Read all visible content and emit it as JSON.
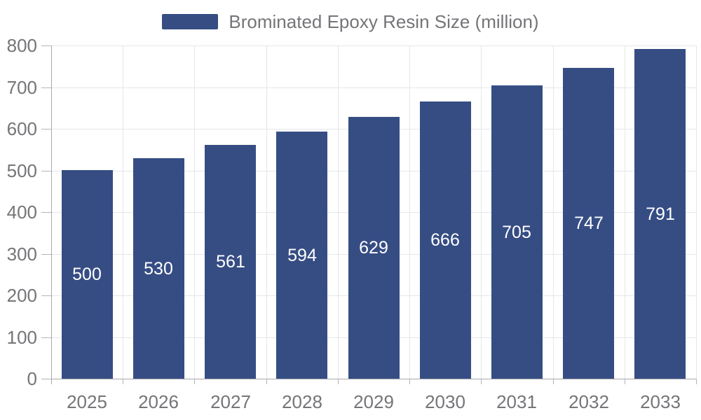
{
  "legend": {
    "label": "Brominated Epoxy Resin Size (million)"
  },
  "colors": {
    "bar": "#364d84",
    "grid_line": "#e4e6ea",
    "axis_line": "#a9a9ae",
    "tick_mark": "#b5b5ba",
    "tick_label": "#757579",
    "value_label": "#ffffff",
    "background": "#ffffff"
  },
  "chart_data": {
    "type": "bar",
    "title": "Brominated Epoxy Resin Size (million)",
    "categories": [
      "2025",
      "2026",
      "2027",
      "2028",
      "2029",
      "2030",
      "2031",
      "2032",
      "2033"
    ],
    "series": [
      {
        "name": "Brominated Epoxy Resin Size (million)",
        "values": [
          500,
          530,
          561,
          594,
          629,
          666,
          705,
          747,
          791
        ]
      }
    ],
    "value_labels": [
      "500",
      "530",
      "561",
      "594",
      "629",
      "666",
      "705",
      "747",
      "791"
    ],
    "yticks": [
      0,
      100,
      200,
      300,
      400,
      500,
      600,
      700,
      800
    ],
    "ylim": [
      0,
      800
    ],
    "xlabel": "",
    "ylabel": "",
    "grid": true,
    "legend_position": "top-center",
    "value_label_position": "inside-center"
  }
}
